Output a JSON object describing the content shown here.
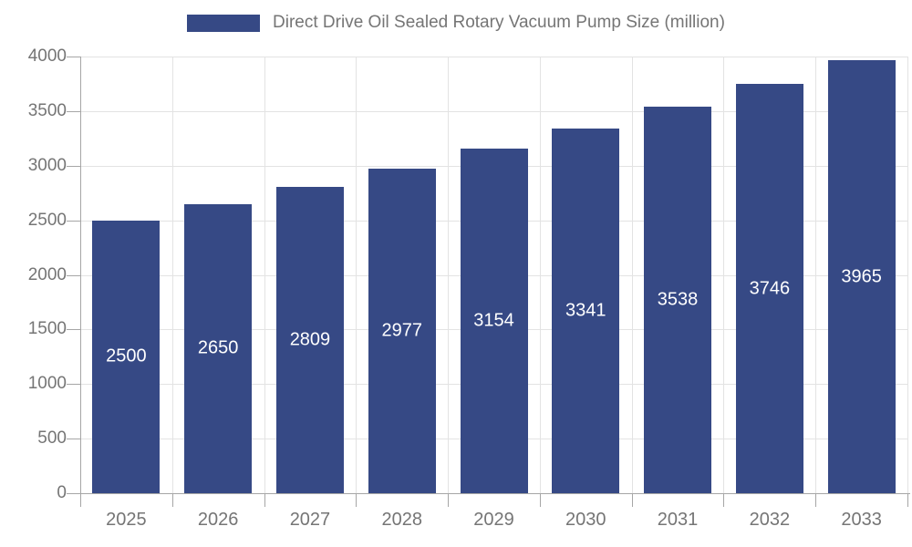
{
  "chart_data": {
    "type": "bar",
    "title": "Direct Drive Oil Sealed Rotary Vacuum Pump Size (million)",
    "categories": [
      "2025",
      "2026",
      "2027",
      "2028",
      "2029",
      "2030",
      "2031",
      "2032",
      "2033"
    ],
    "values": [
      2500,
      2650,
      2809,
      2977,
      3154,
      3341,
      3538,
      3746,
      3965
    ],
    "xlabel": "",
    "ylabel": "",
    "ylim": [
      0,
      4000
    ],
    "yticks": [
      0,
      500,
      1000,
      1500,
      2000,
      2500,
      3000,
      3500,
      4000
    ],
    "grid": true,
    "legend_position": "top-center",
    "value_label_position": "inside-center",
    "colors": {
      "bar": "#364985",
      "axis_text": "#757575",
      "gridline": "#e3e3e3",
      "axis_line": "#a6a6a6",
      "value_label": "#ffffff",
      "background": "#ffffff"
    }
  }
}
